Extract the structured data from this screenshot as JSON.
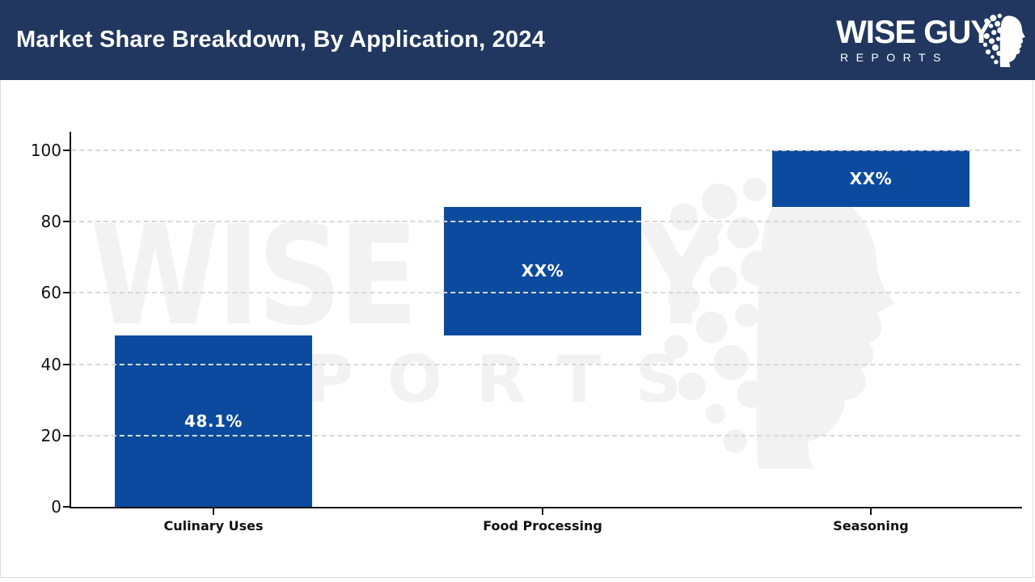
{
  "header": {
    "title": "Market Share Breakdown, By Application, 2024",
    "background": "#21375F",
    "logo": {
      "line1": "WISE GUY",
      "line2": "REPORTS"
    }
  },
  "watermark": {
    "line1": "WISE GUY",
    "line2": "REPORTS"
  },
  "chart_data": {
    "type": "bar",
    "variant": "floating-segment-waterfall",
    "title": "Market Share Breakdown, By Application, 2024",
    "categories": [
      "Culinary Uses",
      "Food Processing",
      "Seasoning"
    ],
    "series": [
      {
        "name": "Market share (%)",
        "segments": [
          {
            "category": "Culinary Uses",
            "start": 0,
            "end": 48.1,
            "label": "48.1%"
          },
          {
            "category": "Food Processing",
            "start": 48.1,
            "end": 84.1,
            "label": "XX%"
          },
          {
            "category": "Seasoning",
            "start": 84.1,
            "end": 100,
            "label": "XX%"
          }
        ]
      }
    ],
    "xlabel": "",
    "ylabel": "",
    "ylim": [
      0,
      105
    ],
    "yticks": [
      0,
      20,
      40,
      60,
      80,
      100
    ],
    "grid": "horizontal-dashed",
    "legend": "none",
    "bar_color": "#0B4A9F",
    "bar_label_color": "#ffffff",
    "axis_color": "#141414",
    "gridline_color": "#d8d8d8"
  }
}
